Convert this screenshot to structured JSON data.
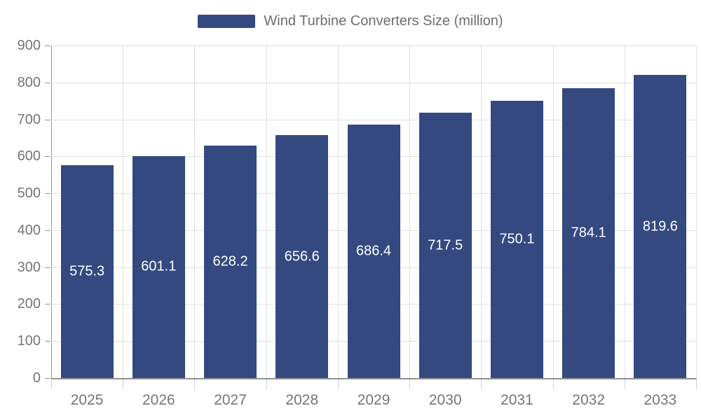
{
  "legend": {
    "label": "Wind Turbine Converters Size (million)"
  },
  "chart_data": {
    "type": "bar",
    "title": "Wind Turbine Converters Size (million)",
    "categories": [
      "2025",
      "2026",
      "2027",
      "2028",
      "2029",
      "2030",
      "2031",
      "2032",
      "2033"
    ],
    "values": [
      575.3,
      601.1,
      628.2,
      656.6,
      686.4,
      717.5,
      750.1,
      784.1,
      819.6
    ],
    "series_name": "Wind Turbine Converters Size (million)",
    "xlabel": "",
    "ylabel": "",
    "ylim": [
      0,
      900
    ],
    "ytick_step": 100,
    "yticks": [
      0,
      100,
      200,
      300,
      400,
      500,
      600,
      700,
      800,
      900
    ],
    "grid": true,
    "legend_position": "top-center",
    "value_labels": "inside-center",
    "colors": {
      "bar": "#344980",
      "bar_label": "#ffffff",
      "axis_label": "#757575",
      "legend_text": "#6e6e6e",
      "gridline": "#e0e0e0",
      "y_axis_line": "#949494",
      "x_axis_line": "#8f8f8f",
      "background": "#ffffff"
    }
  }
}
